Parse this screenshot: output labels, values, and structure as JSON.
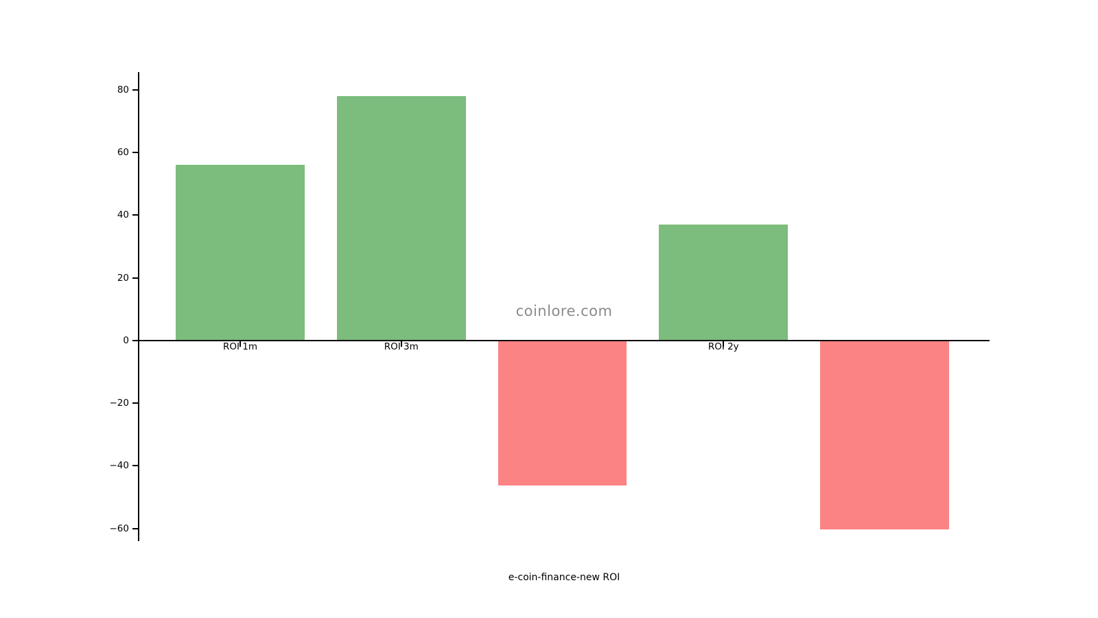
{
  "watermark": {
    "text": "coinlore.com",
    "color": "#8a8a8a"
  },
  "chart_data": {
    "type": "bar",
    "title": "e-coin-finance-new ROI",
    "watermark": "coinlore.com",
    "categories": [
      "ROI 1m",
      "ROI 3m",
      "",
      "ROI 2y",
      ""
    ],
    "values": [
      56,
      78,
      -46,
      37,
      -60
    ],
    "yticks": [
      80,
      60,
      40,
      20,
      0,
      -20,
      -40,
      -60
    ],
    "ylim": [
      -65.5,
      85.5
    ],
    "xlabel": "",
    "ylabel": "",
    "grid": false,
    "legend": null,
    "colors": {
      "positive_bar": "#7cbc7c",
      "negative_bar": "#fc8383",
      "axis": "#000000",
      "tick_label": "#000000"
    }
  }
}
